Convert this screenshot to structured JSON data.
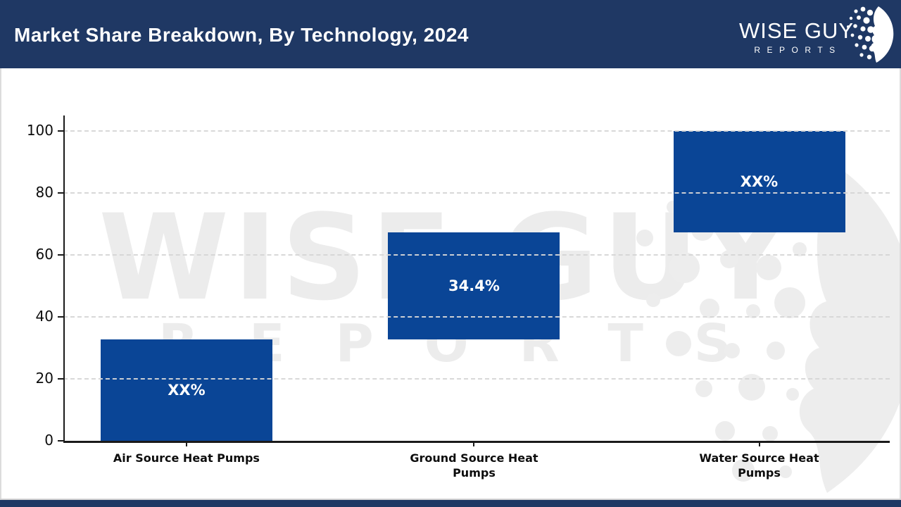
{
  "header": {
    "title": "Market Share Breakdown, By Technology, 2024",
    "logo": {
      "line1": "WISE GUY",
      "line2": "REPORTS"
    }
  },
  "watermark": {
    "line1": "WISE GUY",
    "line2": "REPORTS"
  },
  "colors": {
    "header_bg": "#1F3864",
    "footer_bg": "#1F3864",
    "bar_color": "#0A4596",
    "bar_label_color": "#FFFFFF",
    "grid_color": "#D6D6D6",
    "axis_color": "#1A1A1A",
    "watermark_color": "#ECECEC"
  },
  "chart_data": {
    "type": "bar",
    "subtype": "waterfall-floating-bars",
    "title": "Market Share Breakdown, By Technology, 2024",
    "xlabel": "",
    "ylabel": "",
    "categories": [
      "Air Source Heat Pumps",
      "Ground Source Heat Pumps",
      "Water Source Heat Pumps"
    ],
    "segments": [
      {
        "category": "Air Source Heat Pumps",
        "start": 0,
        "end": 32.8,
        "value": 32.8,
        "label": "XX%"
      },
      {
        "category": "Ground Source Heat Pumps",
        "start": 32.8,
        "end": 67.2,
        "value": 34.4,
        "label": "34.4%"
      },
      {
        "category": "Water Source Heat Pumps",
        "start": 67.2,
        "end": 100,
        "value": 32.8,
        "label": "XX%"
      }
    ],
    "yticks": [
      0,
      20,
      40,
      60,
      80,
      100
    ],
    "ylim": [
      0,
      105
    ],
    "grid": "dashed-horizontal",
    "legend": "none",
    "bar_color": "#0A4596"
  }
}
